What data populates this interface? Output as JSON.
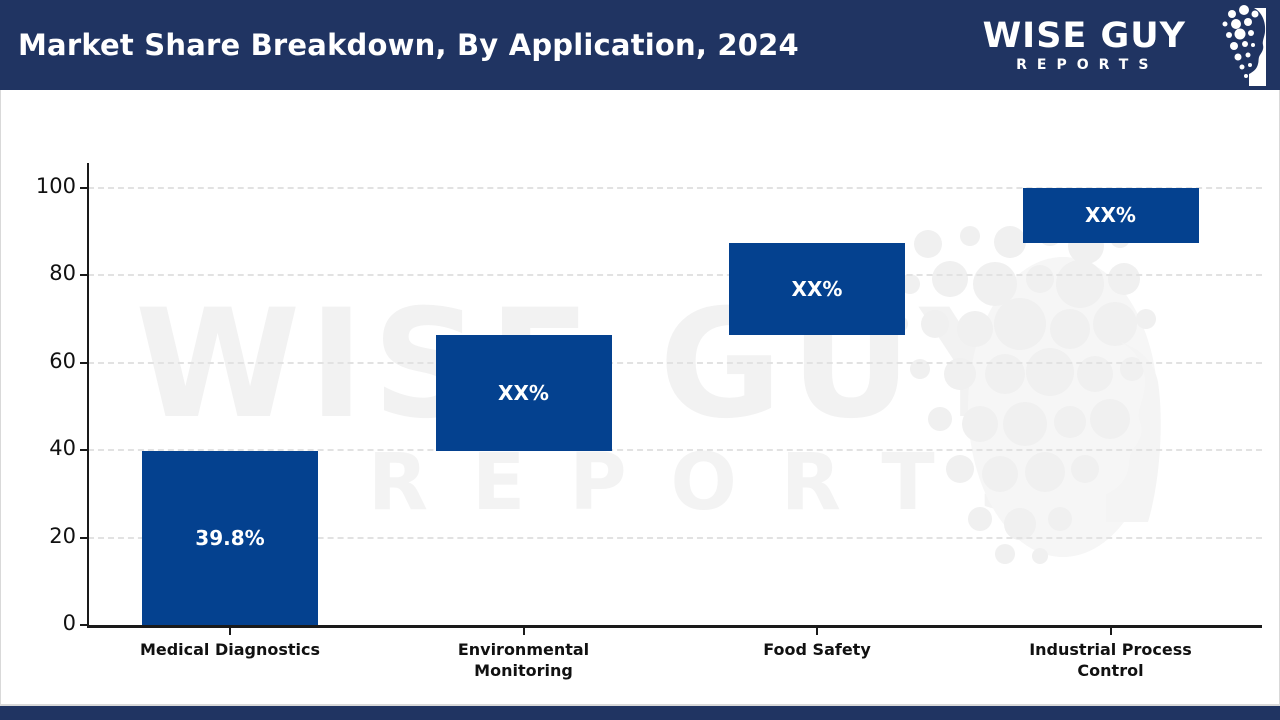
{
  "header": {
    "title": "Market Share Breakdown, By Application, 2024",
    "logo": {
      "line1": "WISE GUY",
      "line2": "REPORTS"
    }
  },
  "watermark": {
    "line1": "WISE GUY",
    "line2": "REPORTS"
  },
  "chart_data": {
    "type": "bar",
    "subtype": "waterfall",
    "title": "Market Share Breakdown, By Application, 2024",
    "categories": [
      "Medical Diagnostics",
      "Environmental Monitoring",
      "Food Safety",
      "Industrial Process Control"
    ],
    "segments": [
      {
        "label": "39.8%",
        "start": 0,
        "end": 39.8
      },
      {
        "label": "XX%",
        "start": 39.8,
        "end": 66.3
      },
      {
        "label": "XX%",
        "start": 66.3,
        "end": 87.3
      },
      {
        "label": "XX%",
        "start": 87.3,
        "end": 100
      }
    ],
    "yticks": [
      0,
      20,
      40,
      60,
      80,
      100
    ],
    "ylim": [
      0,
      100
    ],
    "grid": "dashed-horizontal",
    "legend": "none",
    "xlabel": "",
    "ylabel": "",
    "bar_color": "#04418f",
    "bar_label_color": "#ffffff"
  },
  "colors": {
    "header_bg": "#203462",
    "footer_bg": "#203462",
    "bar": "#04418f",
    "grid": "#e2e2e2",
    "axis": "#1a1a1a",
    "watermark": "#f2f2f2"
  }
}
